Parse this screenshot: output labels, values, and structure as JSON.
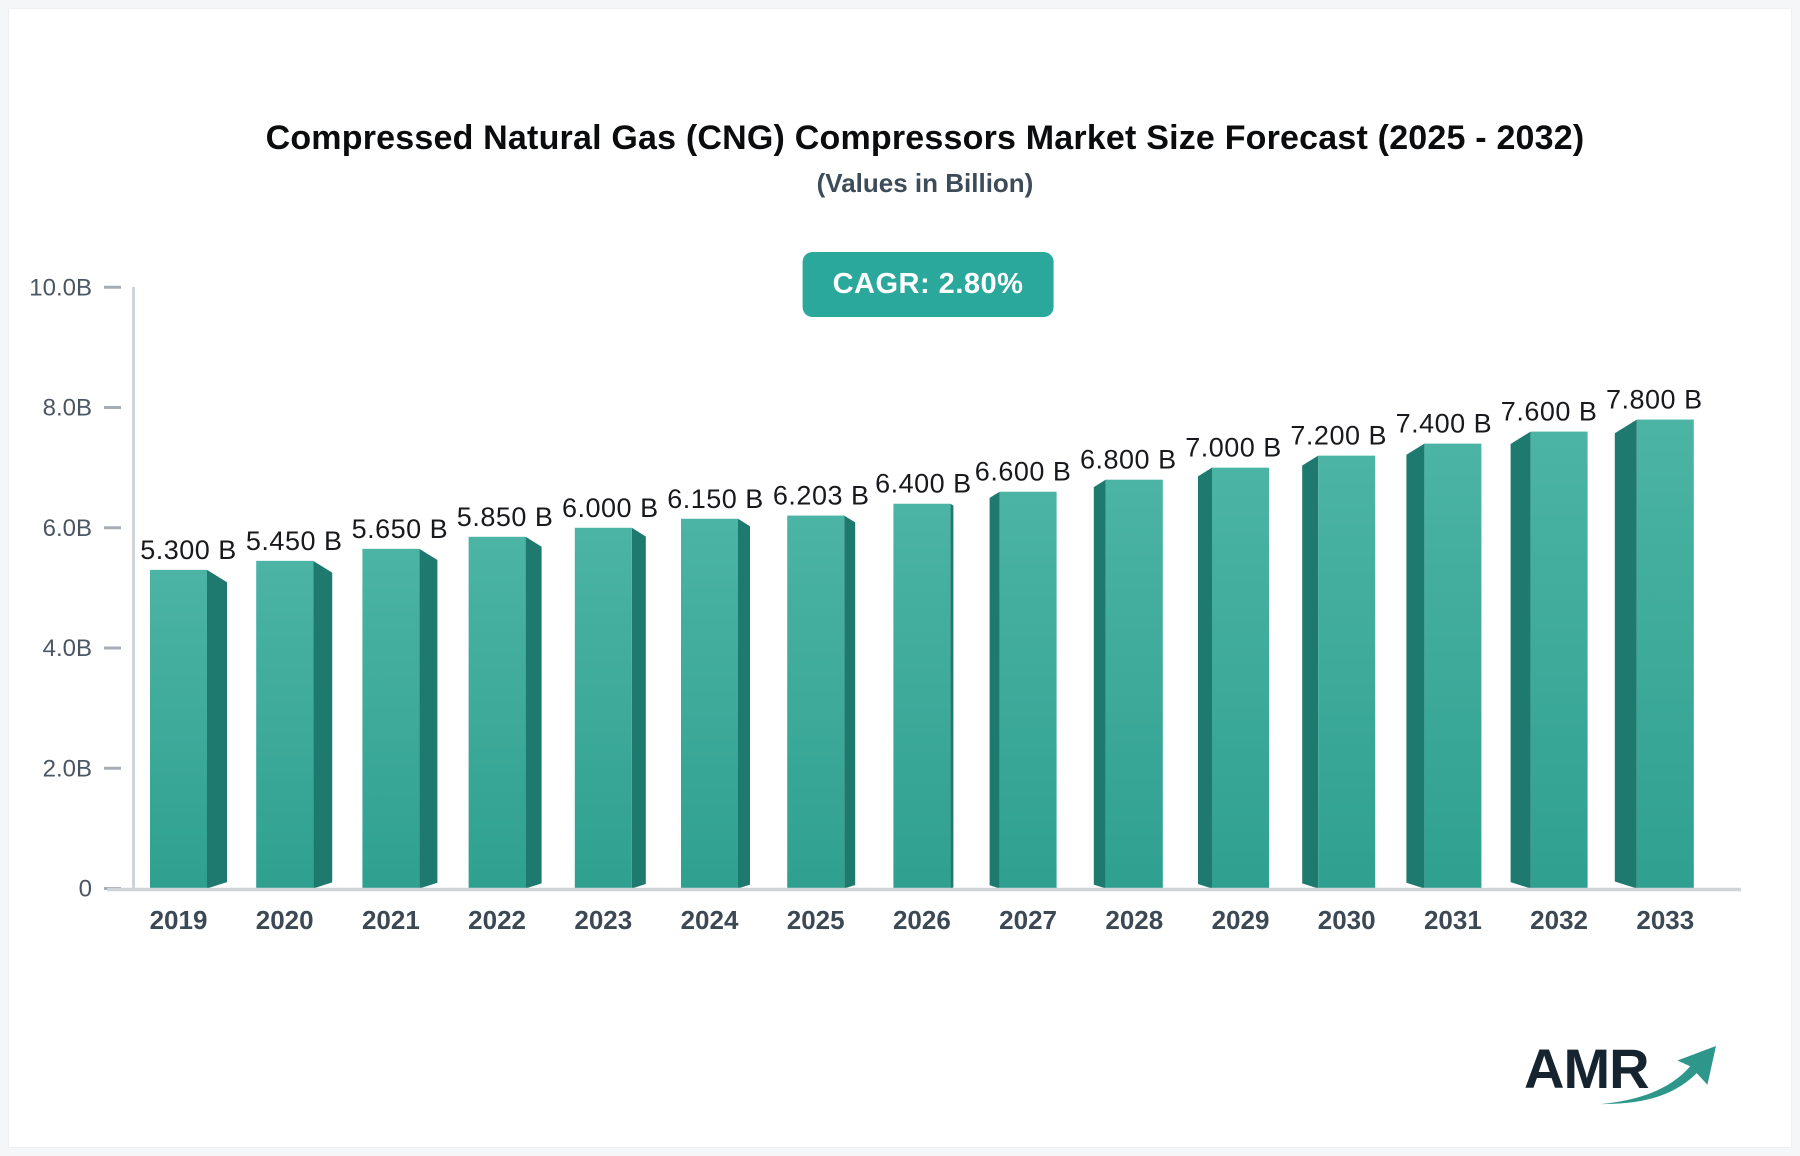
{
  "page": {
    "background": "#F5F6F8",
    "card_background": "#FFFFFF"
  },
  "header": {
    "title": "Compressed Natural Gas (CNG) Compressors Market Size Forecast (2025 - 2032)",
    "subtitle": "(Values in Billion)"
  },
  "badge": {
    "label": "CAGR: 2.80%",
    "background": "#29A89B",
    "text_color": "#FFFFFF"
  },
  "chart_data": {
    "type": "bar",
    "title": "Compressed Natural Gas (CNG) Compressors Market Size Forecast (2025 - 2032)",
    "subtitle": "(Values in Billion)",
    "cagr": "2.80%",
    "unit": "Billion",
    "categories": [
      "2019",
      "2020",
      "2021",
      "2022",
      "2023",
      "2024",
      "2025",
      "2026",
      "2027",
      "2028",
      "2029",
      "2030",
      "2031",
      "2032",
      "2033"
    ],
    "values": [
      5.3,
      5.45,
      5.65,
      5.85,
      6.0,
      6.15,
      6.203,
      6.4,
      6.6,
      6.8,
      7.0,
      7.2,
      7.4,
      7.6,
      7.8
    ],
    "value_labels": [
      "5.300 B",
      "5.450 B",
      "5.650 B",
      "5.850 B",
      "6.000 B",
      "6.150 B",
      "6.203 B",
      "6.400 B",
      "6.600 B",
      "6.800 B",
      "7.000 B",
      "7.200 B",
      "7.400 B",
      "7.600 B",
      "7.800 B"
    ],
    "ylim": [
      0,
      10
    ],
    "yticks": [
      {
        "value": 0,
        "label": "0"
      },
      {
        "value": 2,
        "label": "2.0B"
      },
      {
        "value": 4,
        "label": "4.0B"
      },
      {
        "value": 6,
        "label": "6.0B"
      },
      {
        "value": 8,
        "label": "8.0B"
      },
      {
        "value": 10,
        "label": "10.0B"
      }
    ],
    "grid": false,
    "legend": false,
    "colors": {
      "bar_top": "#4CB4A4",
      "bar_bottom": "#2FA090",
      "bar_side": "#1E7A6E",
      "axis": "#CFD4D8",
      "tick": "#A6ADB4",
      "value_label": "#17191C",
      "x_label": "#3C4954",
      "y_label": "#4A5763"
    }
  },
  "logo": {
    "text": "AMR",
    "color": "#16242F",
    "arrow_color": "#2E968B"
  }
}
